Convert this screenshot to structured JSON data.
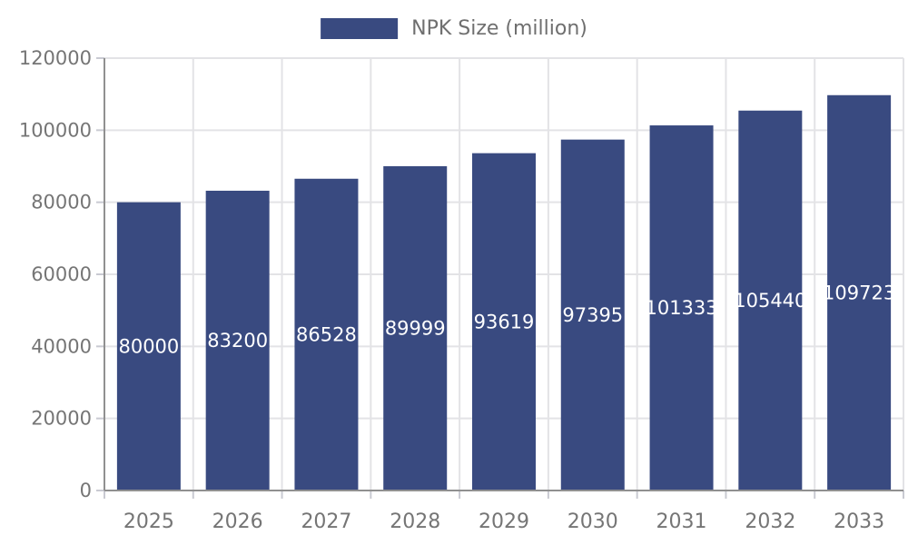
{
  "chart_data": {
    "type": "bar",
    "title": "",
    "legend": "NPK Size (million)",
    "legend_position": "top-center",
    "categories": [
      "2025",
      "2026",
      "2027",
      "2028",
      "2029",
      "2030",
      "2031",
      "2032",
      "2033"
    ],
    "values": [
      80000,
      83200,
      86528,
      89999,
      93619,
      97395,
      101333,
      105440,
      109723
    ],
    "xlabel": "",
    "ylabel": "",
    "ylim": [
      0,
      120000
    ],
    "yticks": [
      0,
      20000,
      40000,
      60000,
      80000,
      100000,
      120000
    ],
    "grid": true,
    "bar_label_position": "inside-center",
    "colors": {
      "bar": "#394a80",
      "bar_label": "#ffffff",
      "grid_line": "#e3e3e6",
      "tick_mark": "#c9cad2",
      "axis_line": "#909090",
      "tick_label": "#757575",
      "legend_text": "#6f6f6f"
    }
  }
}
